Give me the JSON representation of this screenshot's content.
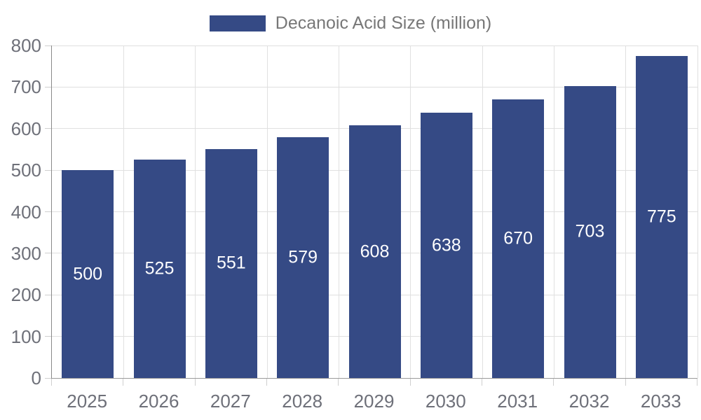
{
  "legend": {
    "label": "Decanoic Acid Size (million)"
  },
  "chart_data": {
    "type": "bar",
    "title": "Decanoic Acid Size (million)",
    "series_name": "Decanoic Acid Size (million)",
    "categories": [
      "2025",
      "2026",
      "2027",
      "2028",
      "2029",
      "2030",
      "2031",
      "2032",
      "2033"
    ],
    "values": [
      500,
      525,
      551,
      579,
      608,
      638,
      670,
      703,
      775
    ],
    "data_labels_visible": true,
    "xlabel": "",
    "ylabel": "",
    "ylim": [
      0,
      800
    ],
    "yticks": [
      0,
      100,
      200,
      300,
      400,
      500,
      600,
      700,
      800
    ],
    "grid": true,
    "legend_position": "top",
    "colors": {
      "bar": "#354a85",
      "bar_label_text": "#ffffff",
      "grid_line": "#e0e0e0",
      "axis_line": "#8a8a8a",
      "tick_text": "#6e7079",
      "legend_text": "#777777",
      "background": "#ffffff"
    }
  }
}
